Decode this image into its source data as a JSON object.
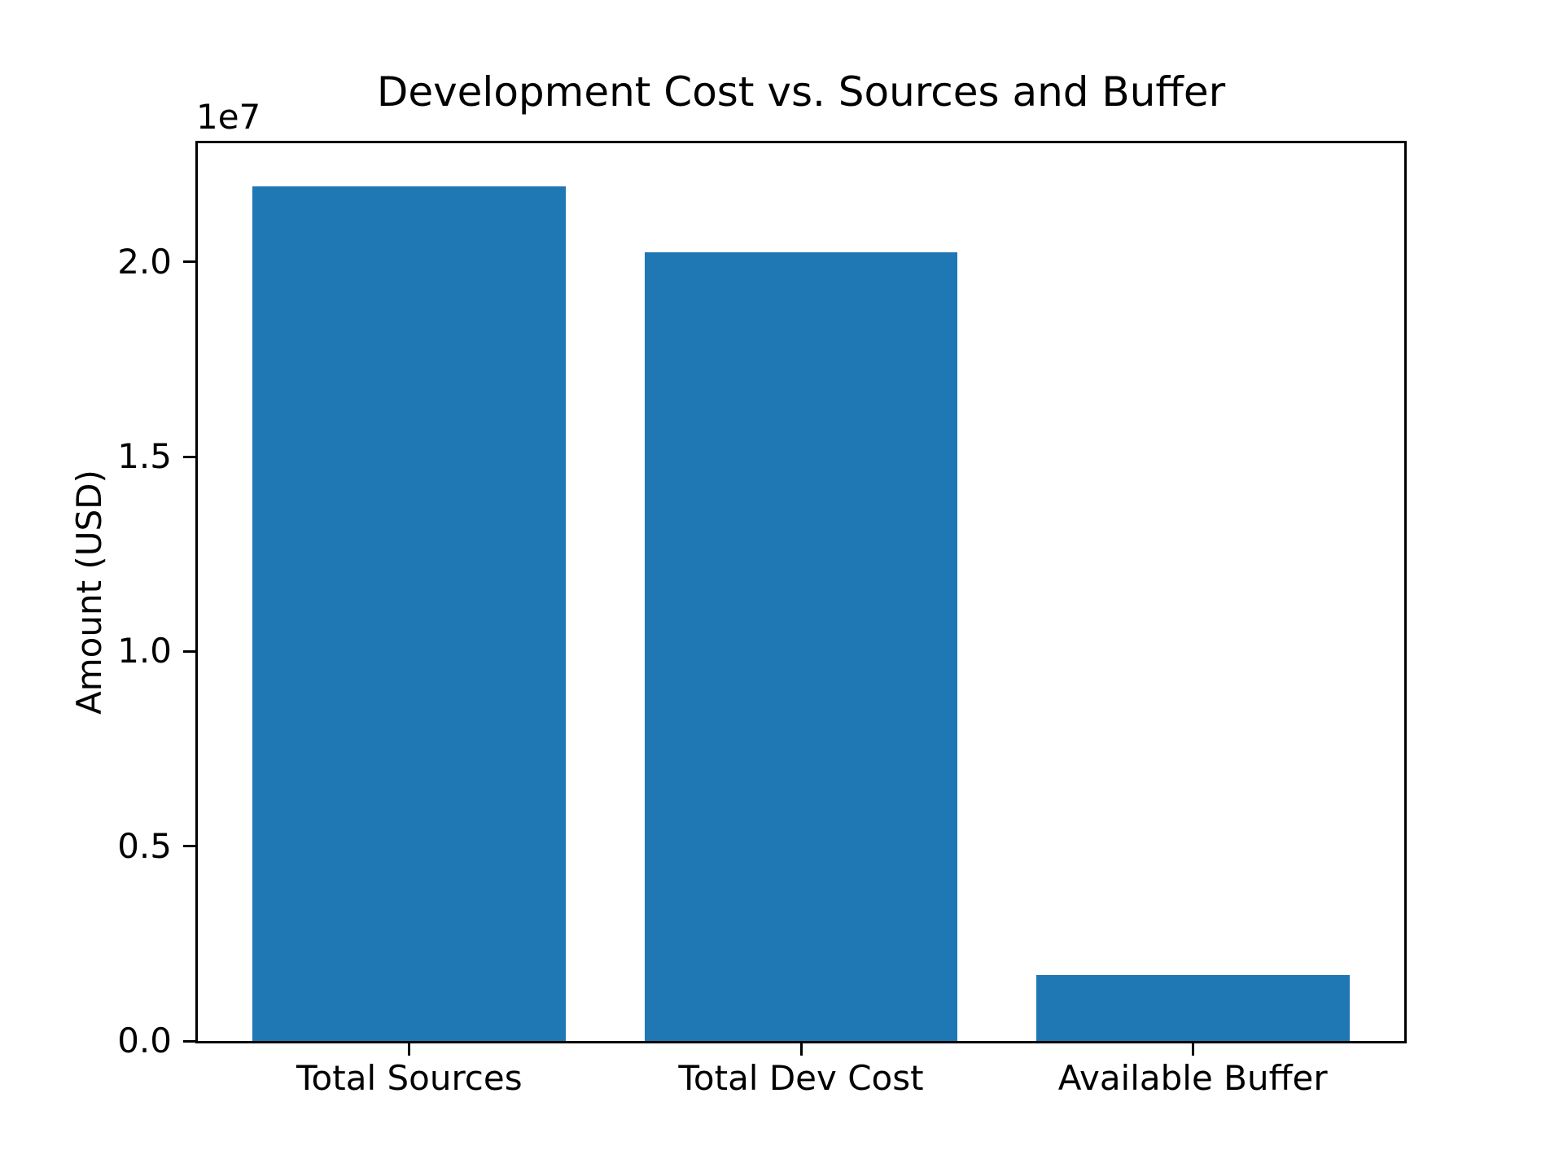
{
  "chart_data": {
    "type": "bar",
    "title": "Development Cost vs. Sources and Buffer",
    "categories": [
      "Total Sources",
      "Total Dev Cost",
      "Available Buffer"
    ],
    "values": [
      21950000,
      20250000,
      1700000
    ],
    "xlabel": "",
    "ylabel": "Amount (USD)",
    "y_offset_text": "1e7",
    "ylim": [
      0,
      23047500
    ],
    "yticks": [
      {
        "value": 0,
        "label": "0.0"
      },
      {
        "value": 5000000,
        "label": "0.5"
      },
      {
        "value": 10000000,
        "label": "1.0"
      },
      {
        "value": 15000000,
        "label": "1.5"
      },
      {
        "value": 20000000,
        "label": "2.0"
      }
    ],
    "bar_width_ratio": 0.8,
    "bar_color": "#1f77b4",
    "text_color": "#000000",
    "background_color": "#ffffff",
    "grid": false,
    "legend": false
  }
}
